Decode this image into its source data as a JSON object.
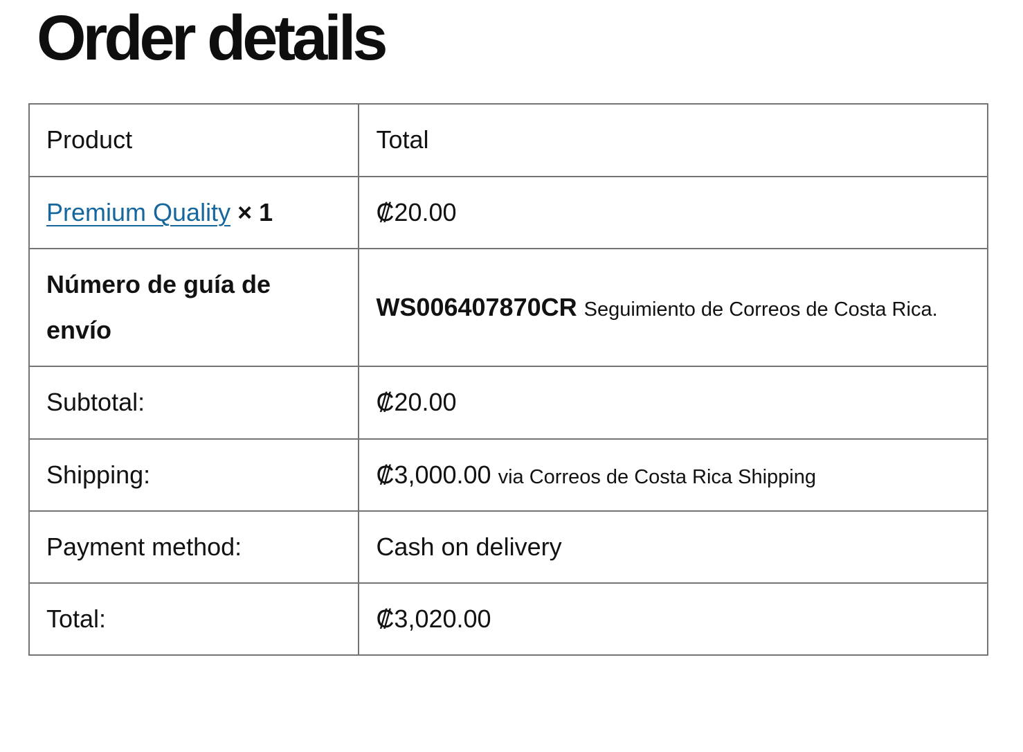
{
  "page": {
    "title": "Order details"
  },
  "table": {
    "headers": {
      "product": "Product",
      "total": "Total"
    },
    "product_row": {
      "product_link": "Premium Quality",
      "quantity": "× 1",
      "total": "₡20.00"
    },
    "tracking_row": {
      "label": "Número de guía de envío",
      "code": "WS006407870CR",
      "description": "Seguimiento de Correos de Costa Rica."
    },
    "footer_rows": [
      {
        "label": "Subtotal:",
        "value": "₡20.00",
        "suffix": ""
      },
      {
        "label": "Shipping:",
        "value": "₡3,000.00",
        "suffix": "via Correos de Costa Rica Shipping"
      },
      {
        "label": "Payment method:",
        "value": "Cash on delivery",
        "suffix": ""
      },
      {
        "label": "Total:",
        "value": "₡3,020.00",
        "suffix": ""
      }
    ],
    "colors": {
      "link": "#15679d",
      "border": "#757575",
      "text": "#121212"
    }
  }
}
